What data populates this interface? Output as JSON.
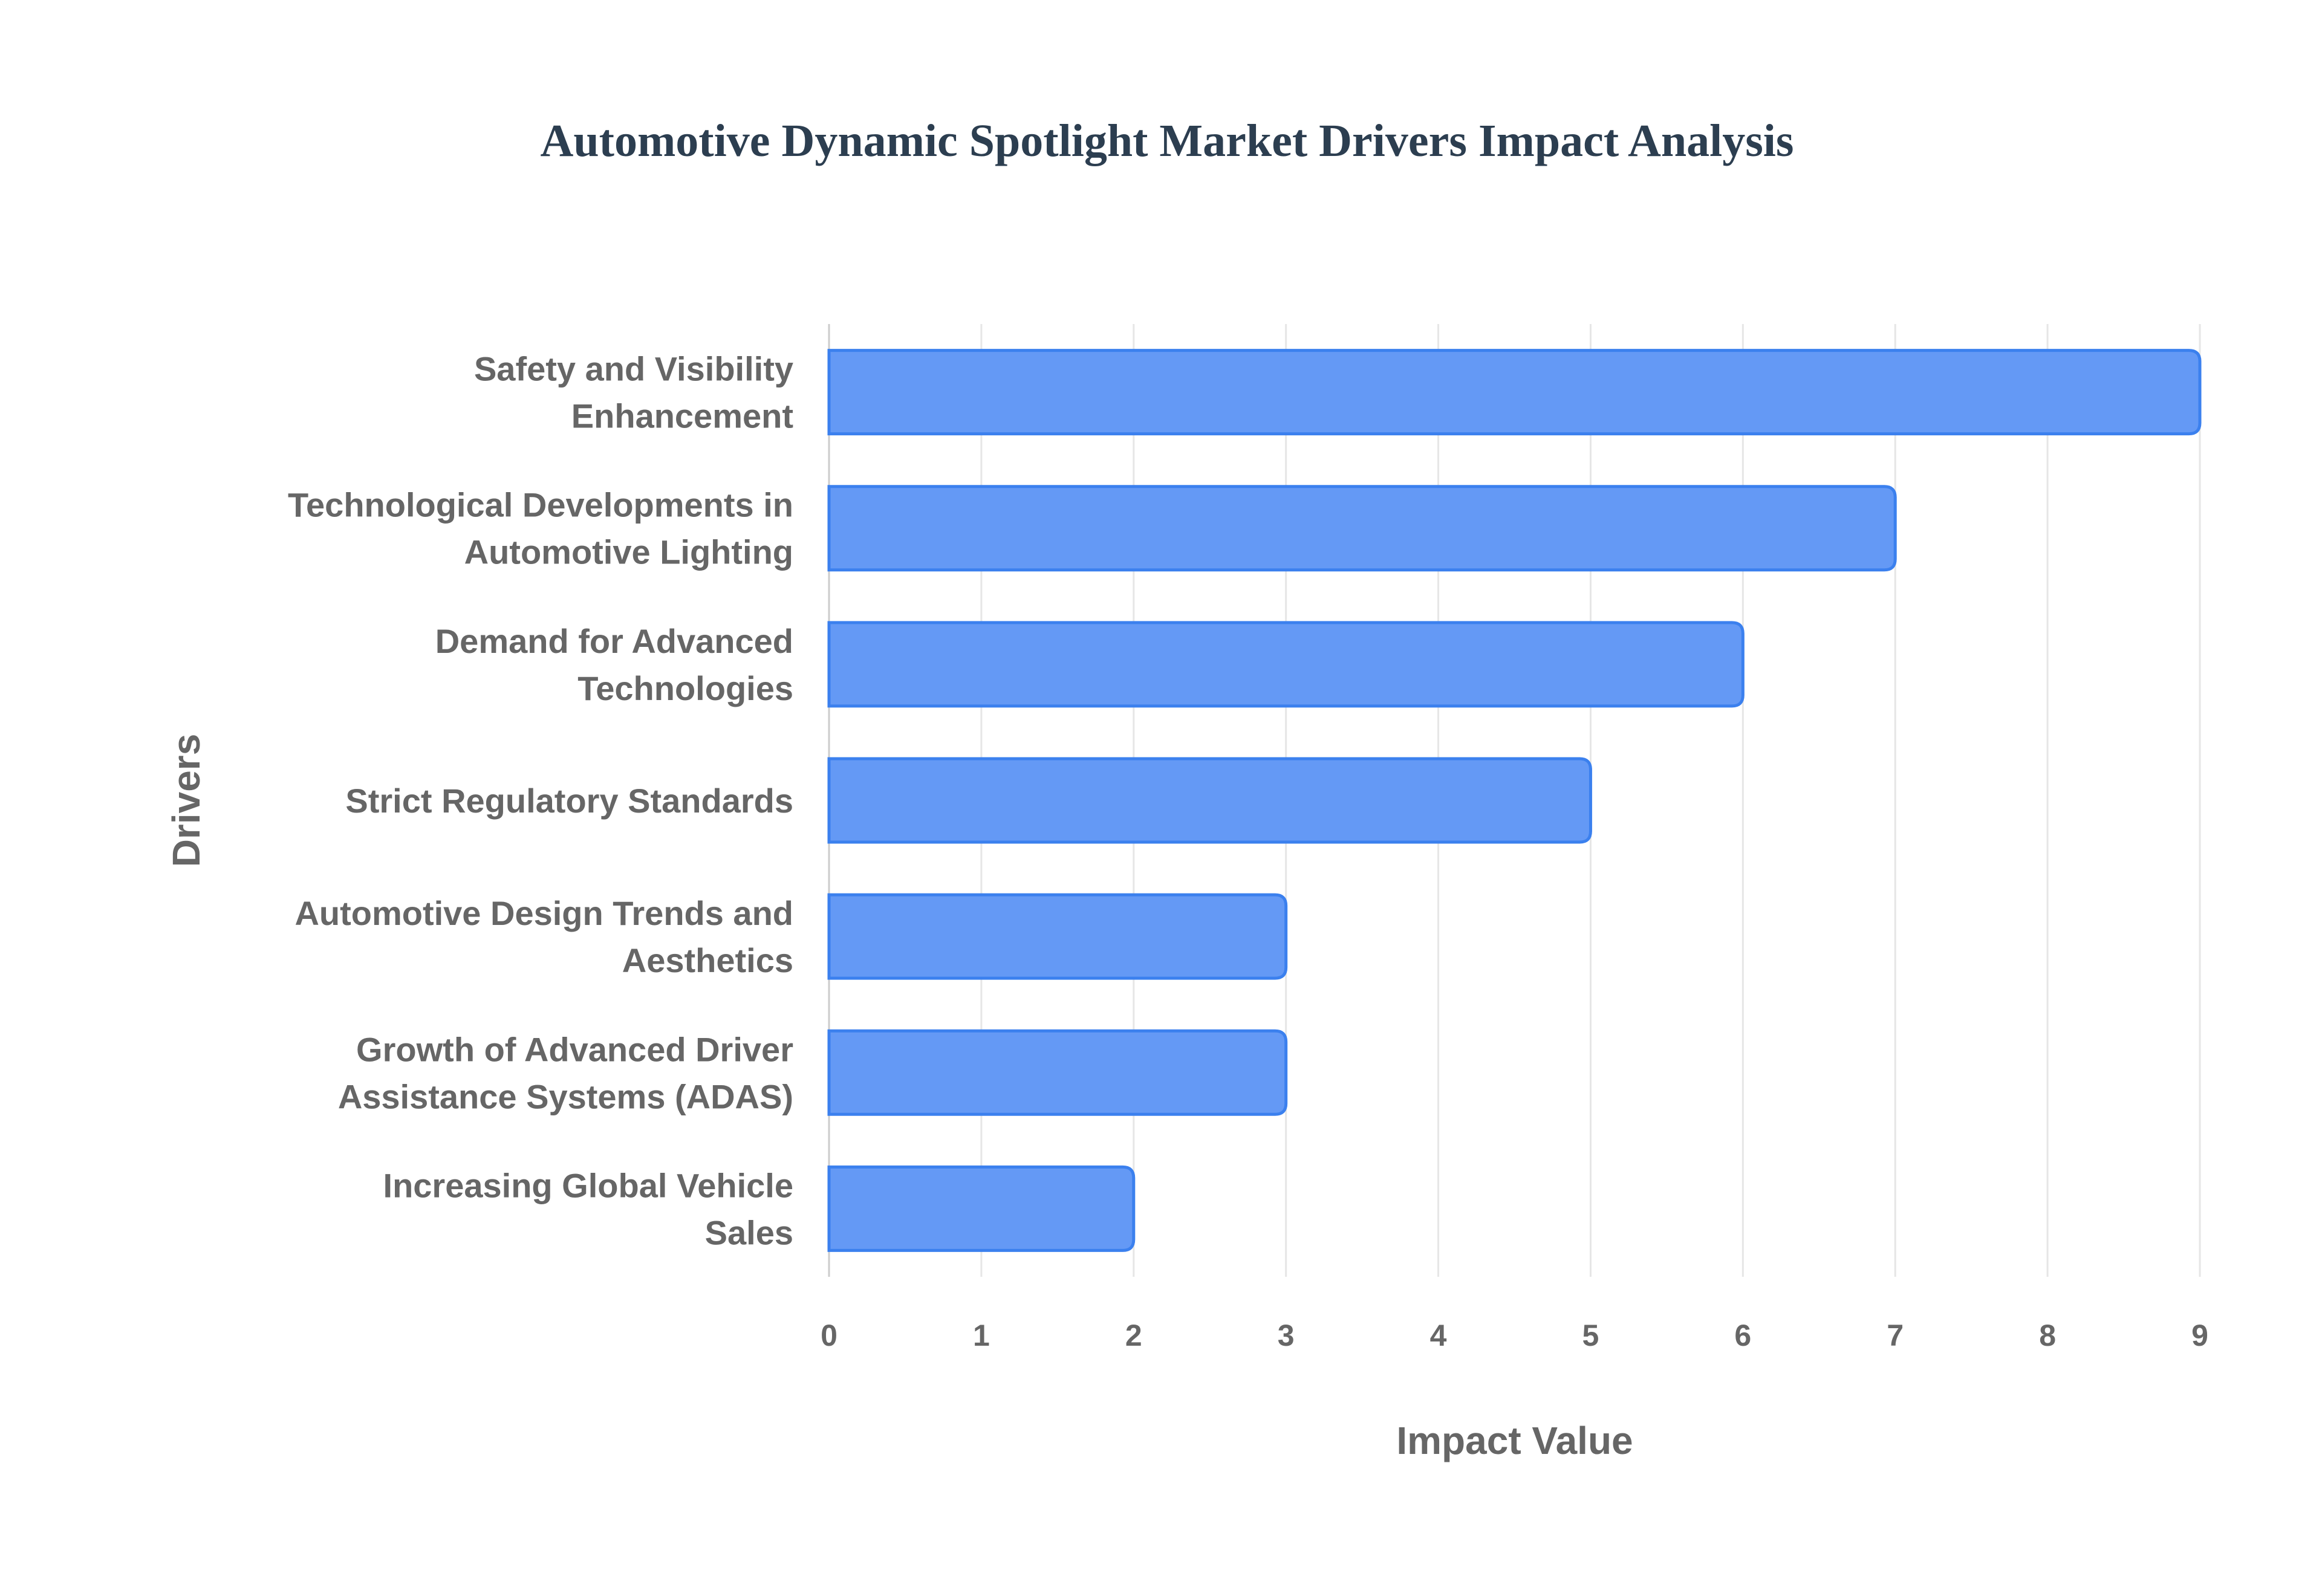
{
  "chart_data": {
    "type": "bar",
    "orientation": "horizontal",
    "title": "Automotive Dynamic Spotlight Market Drivers Impact Analysis",
    "xlabel": "Impact Value",
    "ylabel": "Drivers",
    "xlim": [
      0,
      9
    ],
    "xticks": [
      "0",
      "1",
      "2",
      "3",
      "4",
      "5",
      "6",
      "7",
      "8",
      "9"
    ],
    "grid": true,
    "categories": [
      [
        "Safety and Visibility",
        "Enhancement"
      ],
      [
        "Technological Developments in",
        "Automotive Lighting"
      ],
      [
        "Demand for Advanced",
        "Technologies"
      ],
      [
        "Strict Regulatory Standards"
      ],
      [
        "Automotive Design Trends and",
        "Aesthetics"
      ],
      [
        "Growth of Advanced Driver",
        "Assistance Systems (ADAS)"
      ],
      [
        "Increasing Global Vehicle",
        "Sales"
      ]
    ],
    "values": [
      9,
      7,
      6,
      5,
      3,
      3,
      2
    ],
    "colors": {
      "bar_fill": "#6499f5",
      "bar_border": "#3b80ee",
      "grid": "#e6e6e6",
      "title": "#2c3e50",
      "text": "#666666"
    }
  }
}
